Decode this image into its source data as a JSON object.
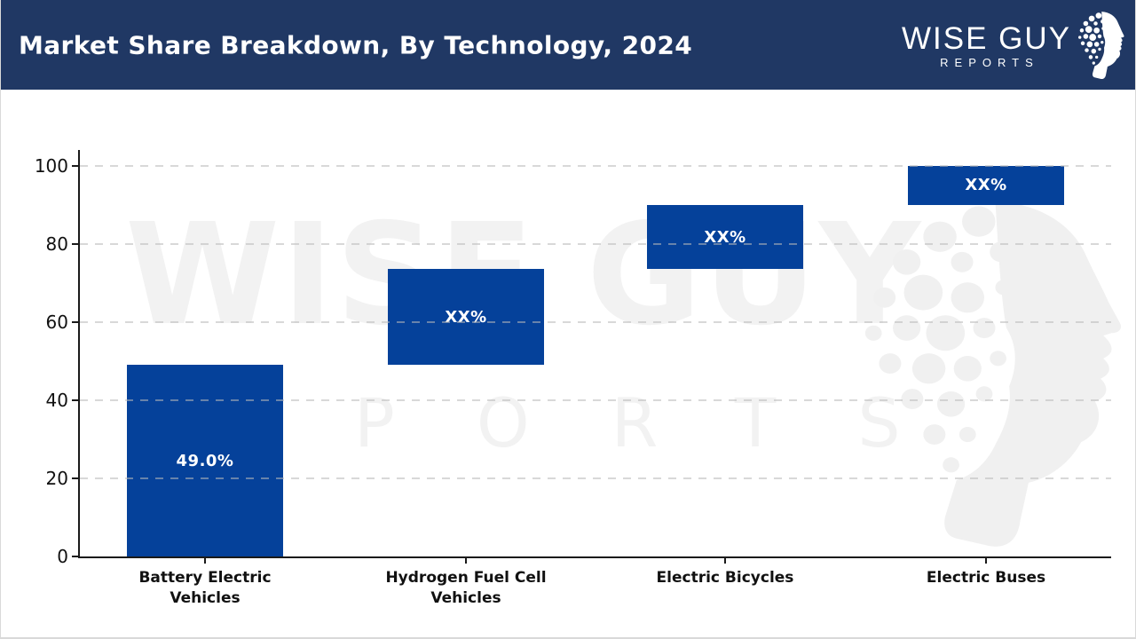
{
  "header": {
    "title": "Market Share Breakdown, By Technology, 2024",
    "logo": {
      "wordmark": "WISE GUY",
      "subtext": "REPORTS"
    }
  },
  "watermark": {
    "wordmark": "WISE GUY",
    "subtext": "PORTS"
  },
  "colors": {
    "header_bg": "#203864",
    "bar": "#05419a",
    "grid": "#dedede",
    "axis": "#1a1a1a",
    "text": "#111111",
    "bar_label": "#ffffff",
    "watermark": "#f2f2f2"
  },
  "chart_data": {
    "type": "bar",
    "variant": "waterfall",
    "title": "Market Share Breakdown, By Technology, 2024",
    "units": "%",
    "categories": [
      [
        "Battery Electric",
        "Vehicles"
      ],
      [
        "Hydrogen Fuel Cell",
        "Vehicles"
      ],
      [
        "Electric Bicycles"
      ],
      [
        "Electric Buses"
      ]
    ],
    "segments": [
      {
        "name": "Battery Electric Vehicles",
        "start": 0,
        "end": 49.0,
        "value": 49.0,
        "label": "49.0%"
      },
      {
        "name": "Hydrogen Fuel Cell Vehicles",
        "start": 49.0,
        "end": 73.5,
        "value": 24.5,
        "label": "XX%"
      },
      {
        "name": "Electric Bicycles",
        "start": 73.5,
        "end": 89.8,
        "value": 16.3,
        "label": "XX%"
      },
      {
        "name": "Electric Buses",
        "start": 89.8,
        "end": 100.0,
        "value": 10.2,
        "label": "XX%"
      }
    ],
    "yticks": [
      0,
      20,
      40,
      60,
      80,
      100
    ],
    "ylim": [
      0,
      104
    ],
    "xlabel": "",
    "ylabel": "",
    "grid": "dashed horizontal",
    "legend": false
  }
}
